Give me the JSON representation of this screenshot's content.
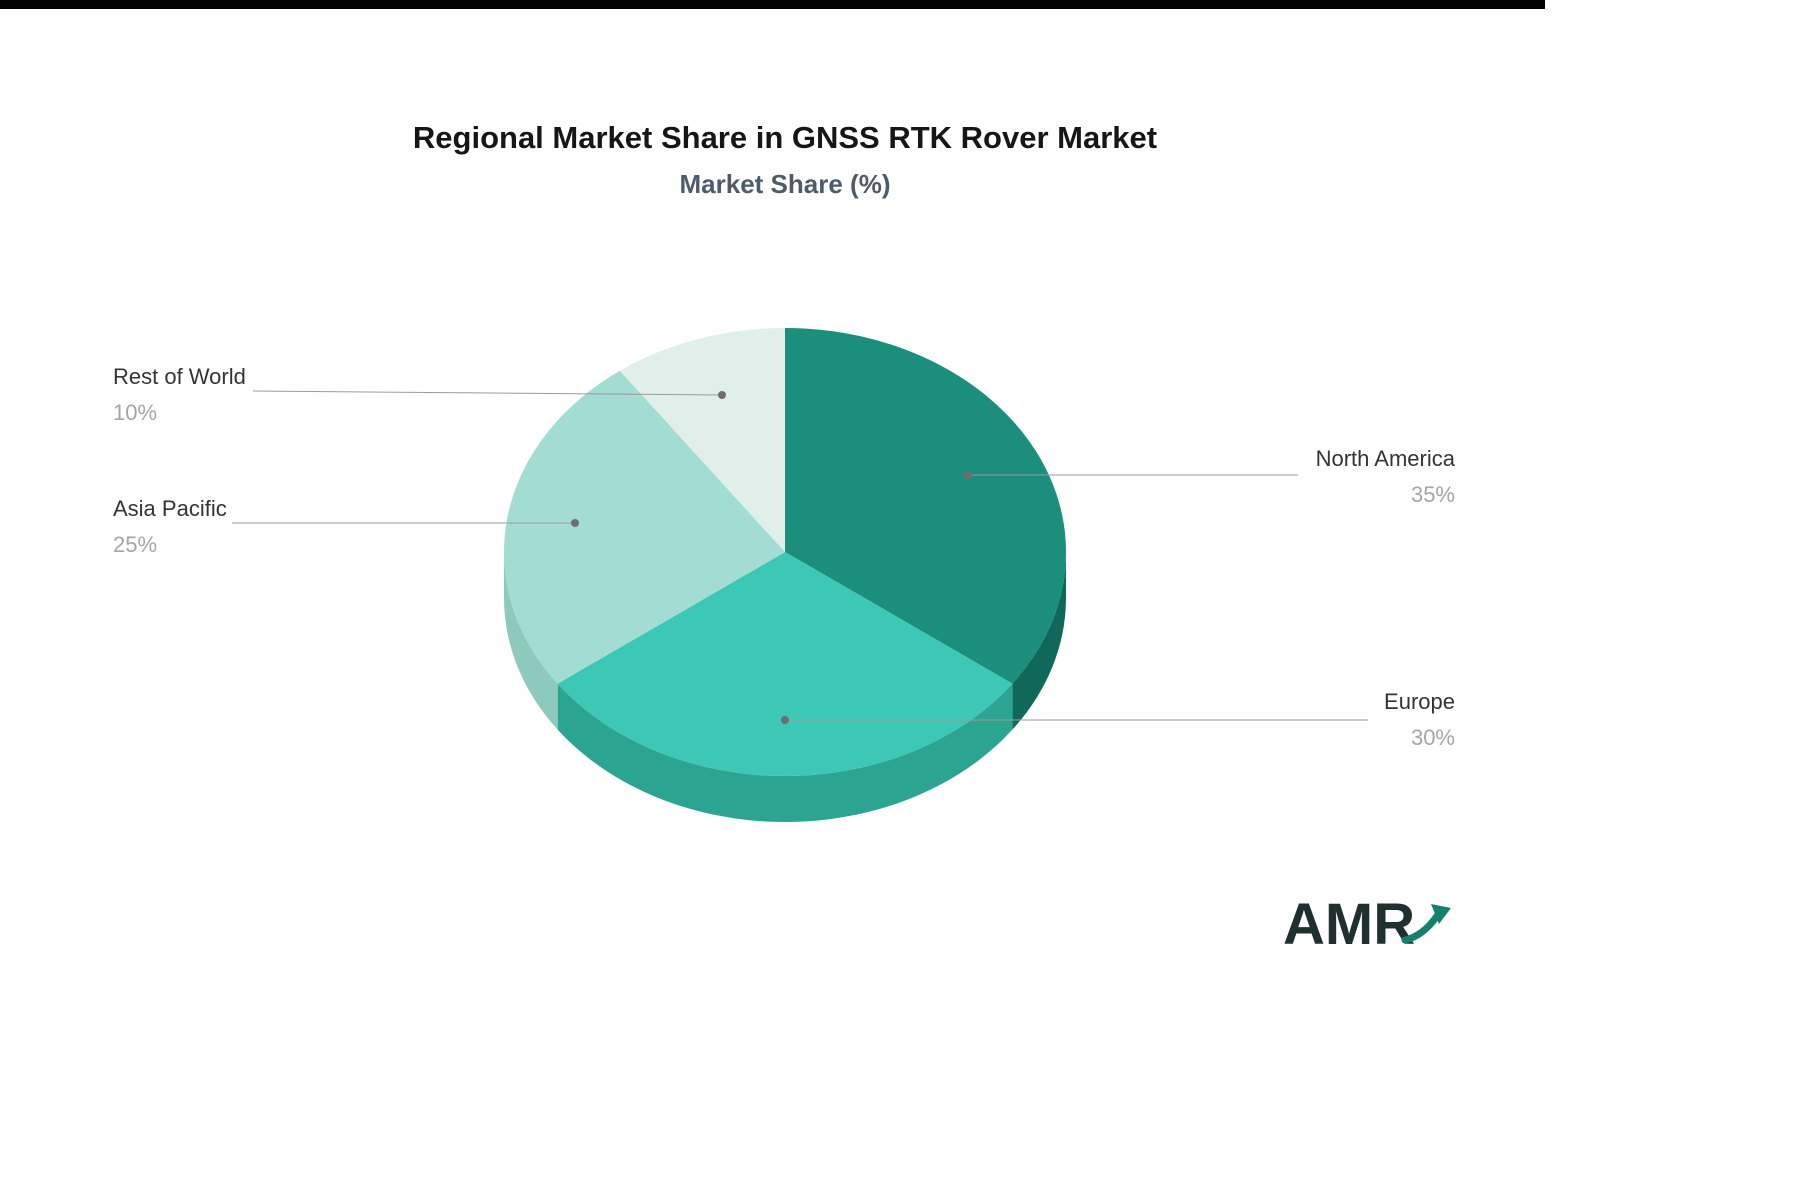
{
  "chart_data": {
    "type": "pie",
    "title": "Regional Market Share in GNSS RTK Rover Market",
    "subtitle": "Market Share (%)",
    "unit": "%",
    "direction": "clockwise",
    "start_angle_deg": 0,
    "legend_position": "none",
    "labels_show_percent": true,
    "leader_line_color": "#9b9b9b",
    "leader_dot_color": "#6e6e6e",
    "series": [
      {
        "label": "North America",
        "value": 35,
        "value_label": "35%",
        "color": "#1b8e7c",
        "side_color": "#0f685a"
      },
      {
        "label": "Europe",
        "value": 30,
        "value_label": "30%",
        "color": "#3cc8b4",
        "side_color": "#2ba591"
      },
      {
        "label": "Asia Pacific",
        "value": 25,
        "value_label": "25%",
        "color": "#a3dcd2",
        "side_color": "#8ec9be"
      },
      {
        "label": "Rest of World",
        "value": 10,
        "value_label": "10%",
        "color": "#e1efeb",
        "side_color": "#c9e2dc"
      }
    ]
  },
  "branding": {
    "logo_text": "AMR",
    "logo_color": "#20302e",
    "arrow_color": "#15806e"
  }
}
